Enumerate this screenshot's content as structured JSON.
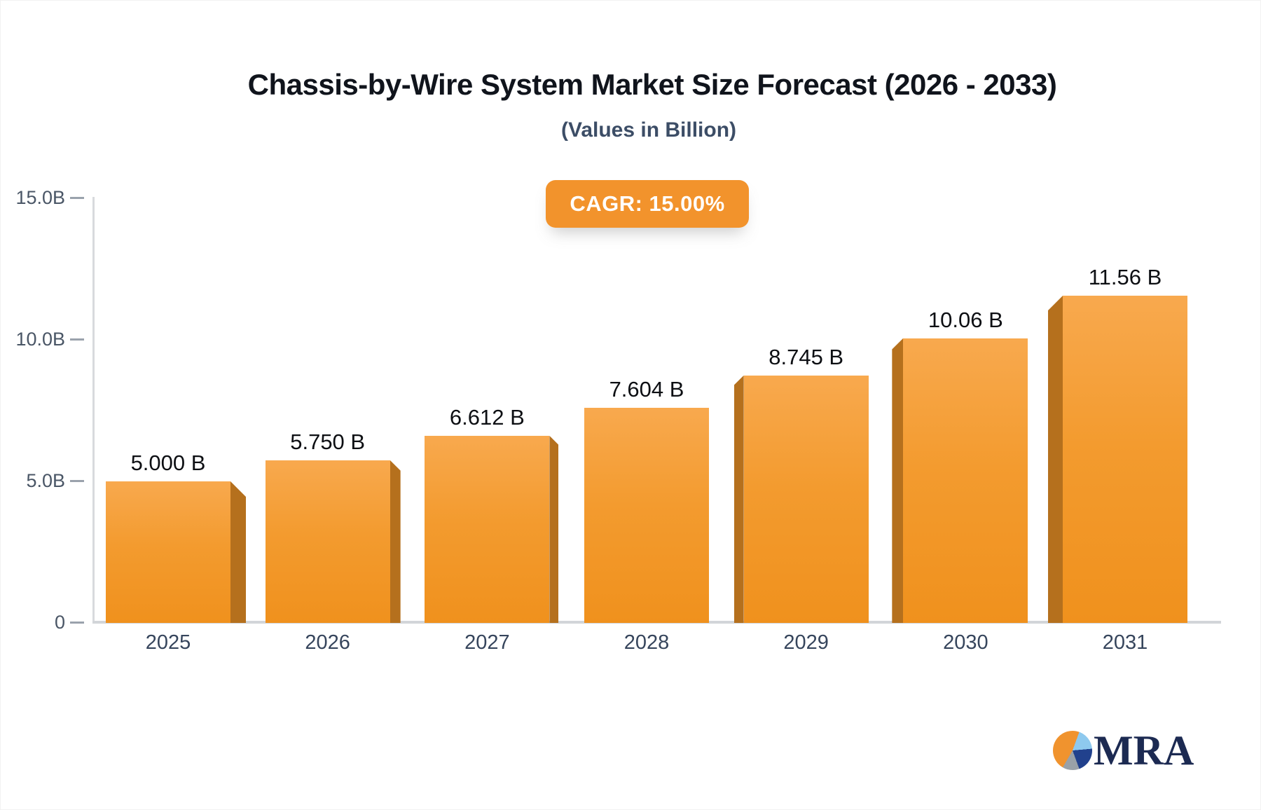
{
  "title": "Chassis-by-Wire System Market Size Forecast (2026 - 2033)",
  "subtitle": "(Values in Billion)",
  "badge": {
    "label": "CAGR: 15.00%",
    "background_color": "#f2932c",
    "text_color": "#ffffff"
  },
  "chart_data": {
    "type": "bar",
    "title": "Chassis-by-Wire System Market Size Forecast (2026 - 2033)",
    "subtitle": "(Values in Billion)",
    "categories": [
      "2025",
      "2026",
      "2027",
      "2028",
      "2029",
      "2030",
      "2031"
    ],
    "values": [
      5.0,
      5.75,
      6.612,
      7.604,
      8.745,
      10.06,
      11.56
    ],
    "value_labels": [
      "5.000 B",
      "5.750 B",
      "6.612 B",
      "7.604 B",
      "8.745 B",
      "10.06 B",
      "11.56 B"
    ],
    "xlabel": "",
    "ylabel": "",
    "ylim": [
      0,
      15
    ],
    "y_ticks": [
      {
        "value": 15,
        "label": "15.0B"
      },
      {
        "value": 10,
        "label": "10.0B"
      },
      {
        "value": 5,
        "label": "5.0B"
      },
      {
        "value": 0,
        "label": "0"
      }
    ],
    "grid": false,
    "legend_position": "none",
    "bar_color_top": "#f8a94e",
    "bar_color_bottom": "#f0911d",
    "bar_side_color": "#b5701d"
  },
  "logo": {
    "text": "MRA",
    "pie_colors": {
      "orange": "#f0932e",
      "light_blue": "#8ec9ee",
      "navy": "#21418d",
      "gray": "#99a1a8"
    }
  }
}
